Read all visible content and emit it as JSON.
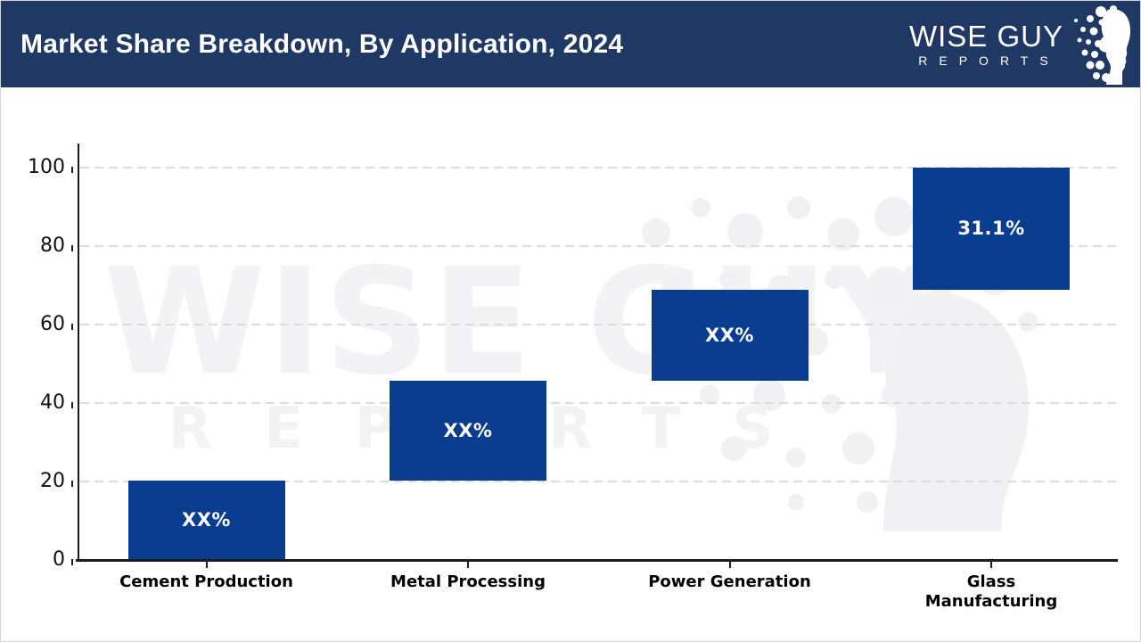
{
  "header": {
    "title": "Market Share Breakdown, By Application, 2024",
    "logo": {
      "name": "WISE GUY",
      "sub": "REPORTS"
    }
  },
  "watermark": {
    "name": "WISE GUY",
    "sub": "REPORTS"
  },
  "colors": {
    "header_bg": "#1f3864",
    "bar": "#0a3d8f",
    "grid": "#dcdcdc",
    "axis": "#1c1c1c",
    "watermark": "#f3f3f5",
    "page_border": "#d6d6d6"
  },
  "chart_data": {
    "type": "bar",
    "subtype": "waterfall",
    "title": "Market Share Breakdown, By Application, 2024",
    "categories": [
      "Cement Production",
      "Metal Processing",
      "Power Generation",
      "Glass Manufacturing"
    ],
    "category_lines": [
      [
        "Cement Production"
      ],
      [
        "Metal Processing"
      ],
      [
        "Power Generation"
      ],
      [
        "Glass",
        "Manufacturing"
      ]
    ],
    "segments": [
      {
        "category": "Cement Production",
        "start": 0,
        "end": 20.3,
        "value": 20.3,
        "label": "XX%"
      },
      {
        "category": "Metal Processing",
        "start": 20.3,
        "end": 45.7,
        "value": 25.4,
        "label": "XX%"
      },
      {
        "category": "Power Generation",
        "start": 45.7,
        "end": 68.9,
        "value": 23.2,
        "label": "XX%"
      },
      {
        "category": "Glass Manufacturing",
        "start": 68.9,
        "end": 100,
        "value": 31.1,
        "label": "31.1%"
      }
    ],
    "y_ticks": [
      0,
      20,
      40,
      60,
      80,
      100
    ],
    "ylim": [
      0,
      105
    ],
    "xlabel": "",
    "ylabel": "",
    "grid": "horizontal-dashed",
    "legend": "none",
    "bar_color": "#0a3d8f"
  }
}
